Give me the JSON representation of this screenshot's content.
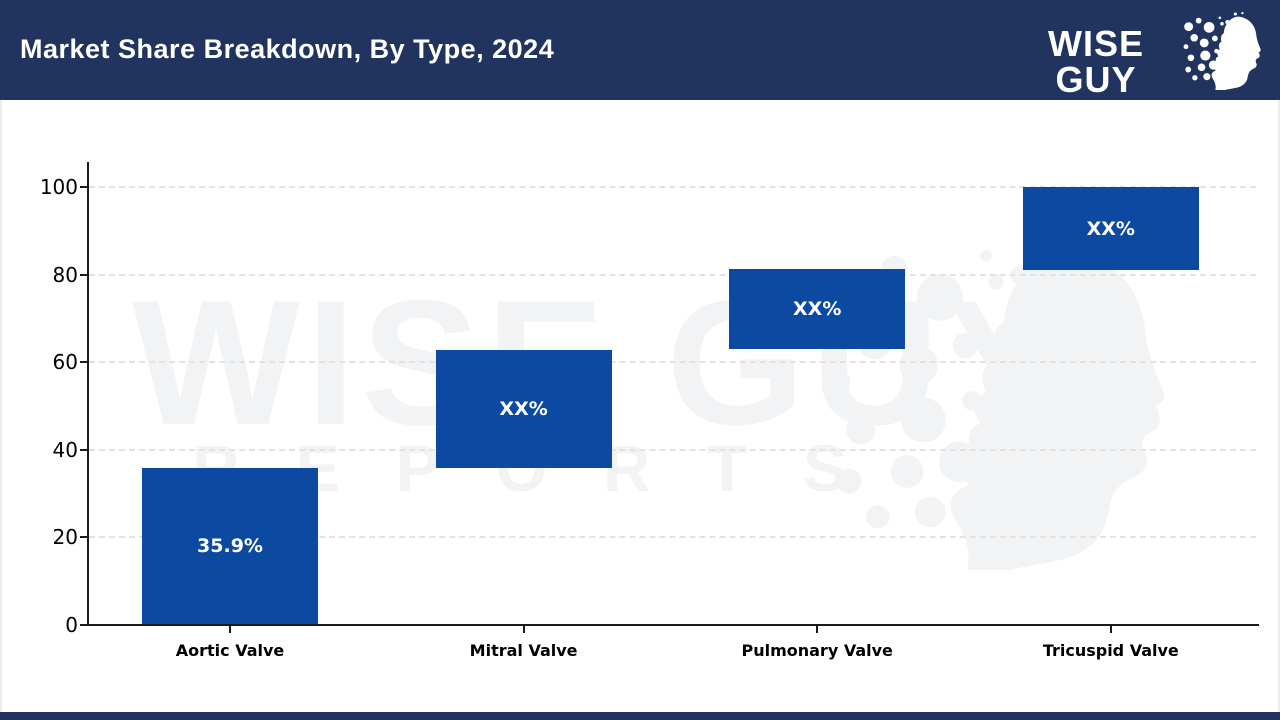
{
  "header": {
    "title": "Market Share Breakdown, By Type, 2024",
    "logo": {
      "line1": "WISE GUY",
      "line2": "REPORTS"
    }
  },
  "watermark": {
    "line1": "WISE GUY",
    "line2": "REPORTS"
  },
  "chart_data": {
    "type": "bar",
    "subtype": "waterfall",
    "title": "Market Share Breakdown, By Type, 2024",
    "categories": [
      "Aortic Valve",
      "Mitral Valve",
      "Pulmonary Valve",
      "Tricuspid Valve"
    ],
    "segments": [
      {
        "category": "Aortic Valve",
        "start": 0,
        "end": 35.9,
        "label": "35.9%"
      },
      {
        "category": "Mitral Valve",
        "start": 35.9,
        "end": 62.8,
        "label": "XX%"
      },
      {
        "category": "Pulmonary Valve",
        "start": 63.0,
        "end": 81.3,
        "label": "XX%"
      },
      {
        "category": "Tricuspid Valve",
        "start": 81.0,
        "end": 100,
        "label": "XX%"
      }
    ],
    "ylim": [
      0,
      100
    ],
    "yticks": [
      0,
      20,
      40,
      60,
      80,
      100
    ],
    "xlabel": "",
    "ylabel": "",
    "legend": "none",
    "grid": "horizontal-dashed",
    "colors": {
      "bar": "#0b4aa0",
      "bar_label": "#ffffff",
      "axis": "#1a1a1a",
      "grid": "#e2e2e2",
      "header_bg": "#20345f",
      "watermark": "#f2f3f5"
    }
  }
}
